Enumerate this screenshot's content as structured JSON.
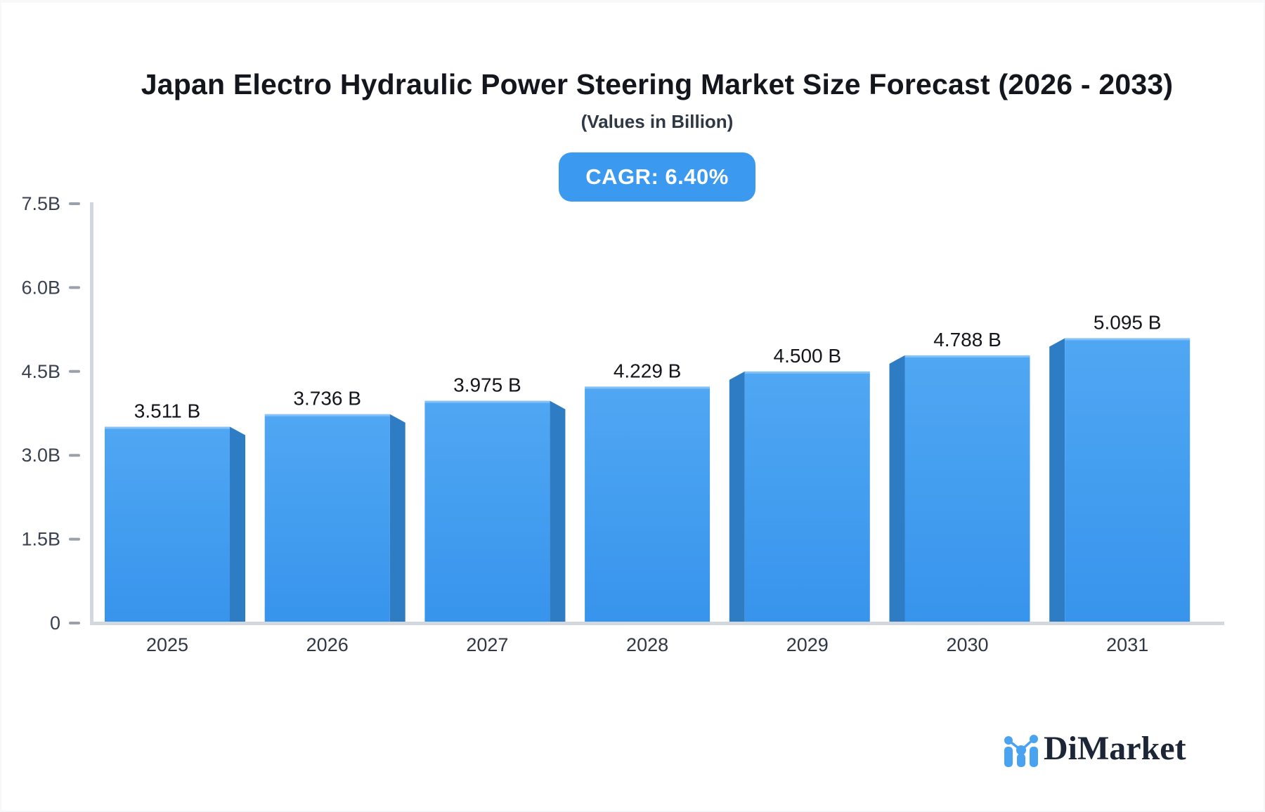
{
  "header": {
    "title": "Japan Electro Hydraulic Power Steering Market Size Forecast (2026 - 2033)",
    "subtitle": "(Values in Billion)",
    "cagr_label": "CAGR: 6.40%"
  },
  "chart_data": {
    "type": "bar",
    "title": "Japan Electro Hydraulic Power Steering Market Size Forecast (2026 - 2033)",
    "subtitle": "(Values in Billion)",
    "cagr": "6.40%",
    "categories": [
      "2025",
      "2026",
      "2027",
      "2028",
      "2029",
      "2030",
      "2031"
    ],
    "values": [
      3.511,
      3.736,
      3.975,
      4.229,
      4.5,
      4.788,
      5.095
    ],
    "value_labels": [
      "3.511 B",
      "3.736 B",
      "3.975 B",
      "4.229 B",
      "4.500 B",
      "4.788 B",
      "5.095 B"
    ],
    "xlabel": "",
    "ylabel": "",
    "ylim": [
      0,
      7.5
    ],
    "yticks": [
      0,
      1.5,
      3.0,
      4.5,
      6.0,
      7.5
    ],
    "ytick_labels": [
      "0",
      "1.5B",
      "3.0B",
      "4.5B",
      "6.0B",
      "7.5B"
    ],
    "grid": false,
    "legend": "none",
    "bar_effect": "3d-perspective-center-vanishing",
    "colors": {
      "bar_face_top": "#50a7f3",
      "bar_face_bottom": "#3794ec",
      "bar_side": "#2e7cc3",
      "axis_line": "#d2d6dd",
      "baseline": "#d3d7de",
      "tick": "#99a2ac",
      "tick_label": "#39424e",
      "x_label": "#2f3844",
      "value_label": "#14161b",
      "accent_blue": "#3b99f0"
    }
  },
  "branding": {
    "logo_text": "DiMarket",
    "logo_icon": "mini-bar-line-chart-icon",
    "logo_blue": "#4aa3f1",
    "logo_text_color": "#1c2636"
  }
}
